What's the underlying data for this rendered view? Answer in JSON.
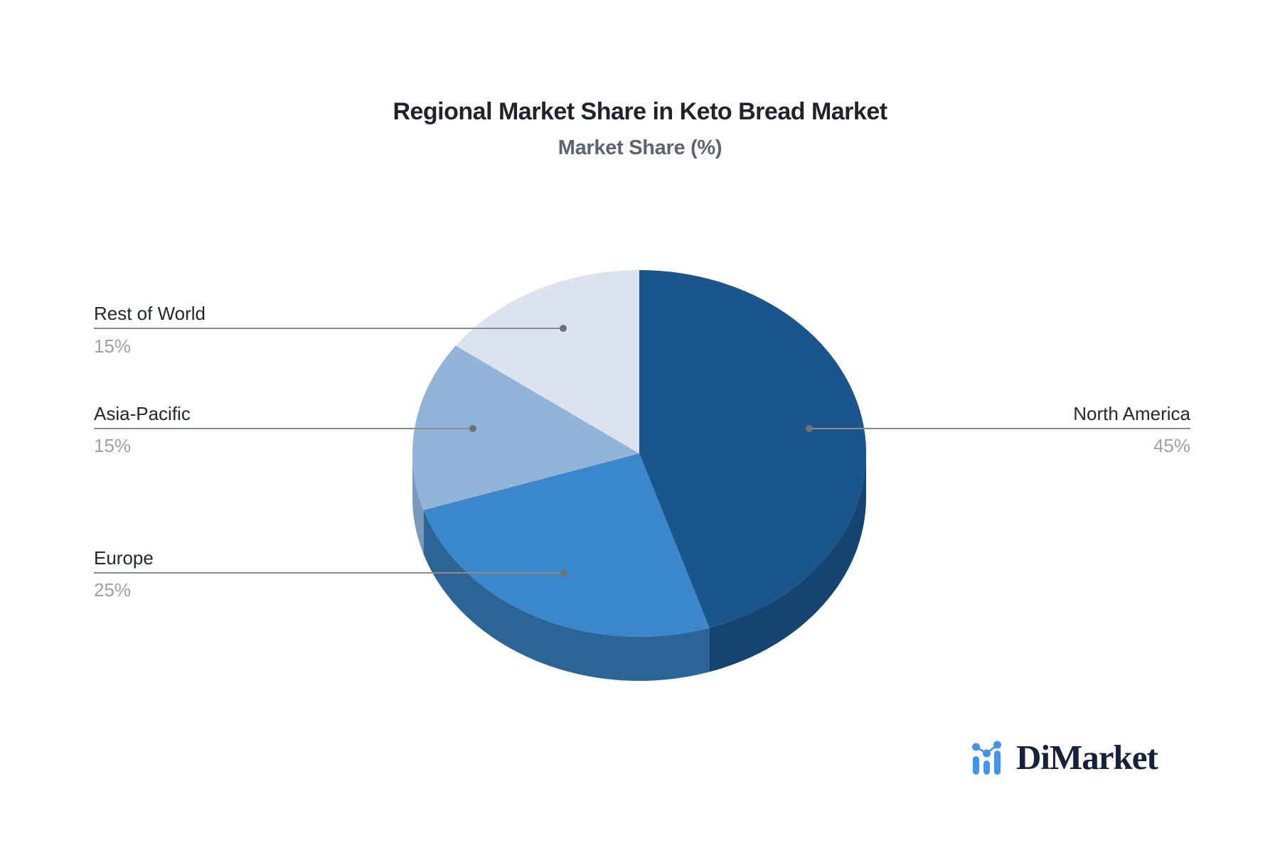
{
  "chart_data": {
    "type": "pie",
    "style": "3d-pie-with-callouts",
    "title": "Regional Market Share in Keto Bread Market",
    "subtitle": "Market Share (%)",
    "unit": "%",
    "legend_position": "callout-labels",
    "slices": [
      {
        "label": "North America",
        "value": 45,
        "value_label": "45%",
        "color": "#1a568c",
        "side_color": "#164470"
      },
      {
        "label": "Europe",
        "value": 25,
        "value_label": "25%",
        "color": "#3b87cb",
        "side_color": "#2d6496"
      },
      {
        "label": "Asia-Pacific",
        "value": 15,
        "value_label": "15%",
        "color": "#91b4d9",
        "side_color": "#7b99b8"
      },
      {
        "label": "Rest of World",
        "value": 15,
        "value_label": "15%",
        "color": "#dce3ee",
        "side_color": "#bcc7d8"
      }
    ]
  },
  "branding": {
    "logo_text": "DiMarket",
    "logo_icon": "bar-line-chart-icon",
    "icon_color": "#4292ef",
    "text_color": "#152238"
  },
  "colors": {
    "leader_line": "#8a8d90",
    "leader_dot": "#6e7276",
    "label_text": "#24272c",
    "value_text": "#9aa1a9",
    "title": "#1f232a",
    "subtitle": "#5b6470",
    "background": "#ffffff"
  }
}
